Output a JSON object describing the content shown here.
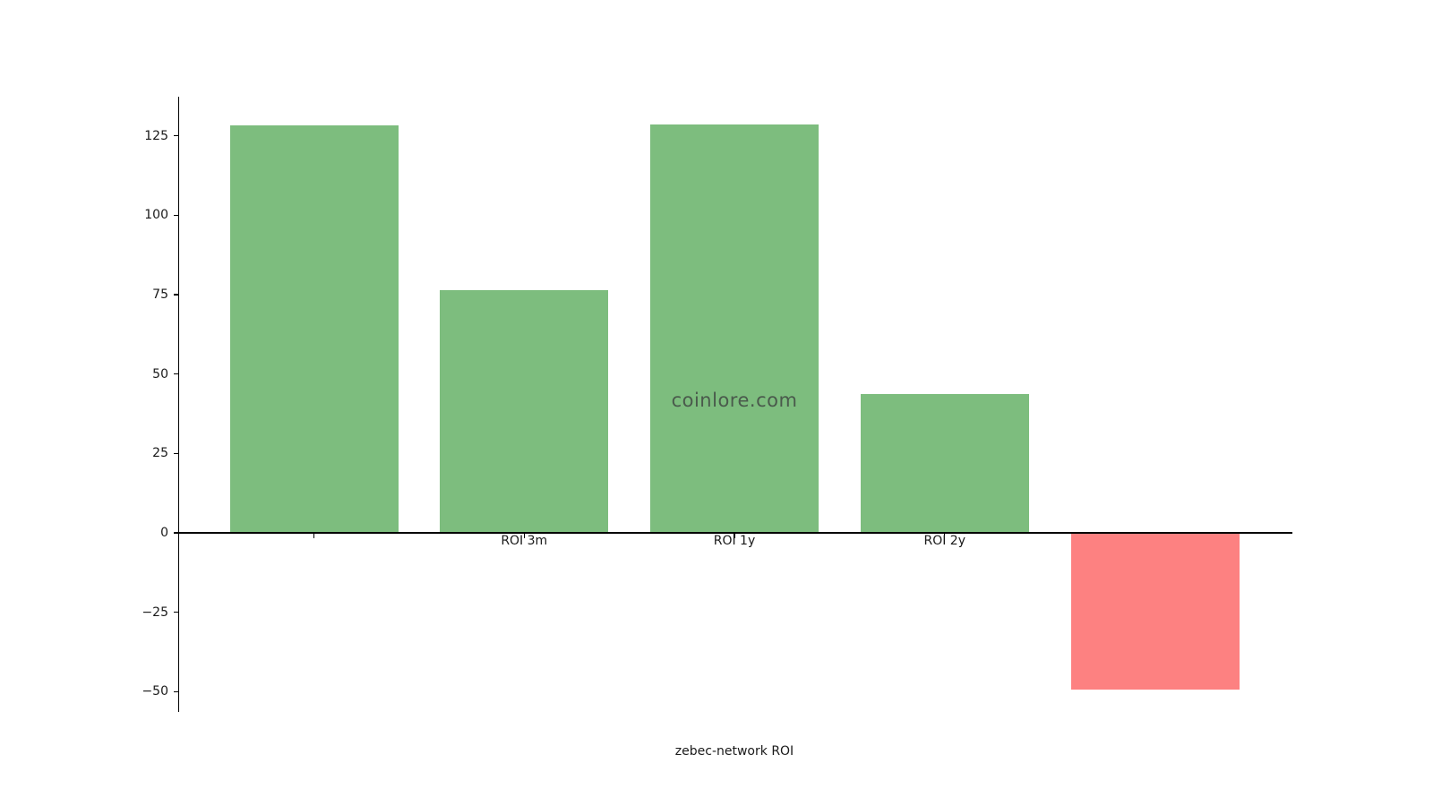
{
  "page": {
    "background_color": "#ffffff"
  },
  "watermark": {
    "text": "coinlore.com",
    "color": "#4a5a4c"
  },
  "chart_data": {
    "type": "bar",
    "title": "",
    "xlabel": "zebec-network ROI",
    "ylabel": "",
    "categories": [
      "",
      "ROI 3m",
      "ROI 1y",
      "ROI 2y",
      ""
    ],
    "values": [
      128.3,
      76.4,
      128.5,
      43.7,
      -49.3
    ],
    "series": [
      {
        "name": "ROI",
        "values": [
          128.3,
          76.4,
          128.5,
          43.7,
          -49.3
        ]
      }
    ],
    "positive_color": "#7dbd7e",
    "negative_color": "#fd8181",
    "axis_color": "#000000",
    "tick_label_color": "#1a1a1a",
    "ylim": [
      -56.4,
      137.3
    ],
    "ytick_values": [
      125,
      100,
      75,
      50,
      25,
      0,
      -25,
      -50
    ],
    "ytick_labels": [
      "125",
      "100",
      "75",
      "50",
      "25",
      "0",
      "−25",
      "−50"
    ],
    "grid": false,
    "legend": false
  }
}
